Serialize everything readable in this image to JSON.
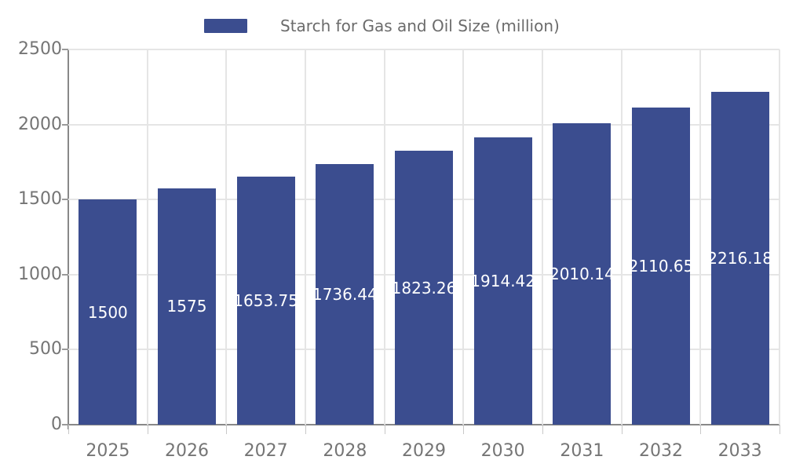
{
  "chart_data": {
    "type": "bar",
    "title": "Starch for Gas and Oil Size (million)",
    "legend_entries": [
      "Starch for Gas and Oil Size (million)"
    ],
    "legend_position": "top",
    "categories": [
      "2025",
      "2026",
      "2027",
      "2028",
      "2029",
      "2030",
      "2031",
      "2032",
      "2033"
    ],
    "series": [
      {
        "name": "Starch for Gas and Oil Size (million)",
        "values": [
          1500,
          1575,
          1653.75,
          1736.44,
          1823.26,
          1914.42,
          2010.14,
          2110.65,
          2216.18
        ],
        "value_labels": [
          "1500",
          "1575",
          "1653.75",
          "1736.44",
          "1823.26",
          "1914.42",
          "2010.14",
          "2110.65",
          "2216.18"
        ]
      }
    ],
    "bar_label_position": "inside-center",
    "xlabel": "",
    "ylabel": "",
    "ylim": [
      0,
      2500
    ],
    "yticks": [
      "0",
      "500",
      "1000",
      "1500",
      "2000",
      "2500"
    ],
    "grid": "horizontal-and-vertical",
    "colors": {
      "bar": "#3b4d8f",
      "bar_label_text": "#ffffff",
      "grid_line": "#e5e5e5",
      "axis_line": "#888888",
      "x_tick_mark": "#c8c8c8",
      "y_tick_mark": "#999999",
      "tick_text": "#757575",
      "legend_text": "#6b6b6b",
      "background": "#ffffff"
    }
  }
}
